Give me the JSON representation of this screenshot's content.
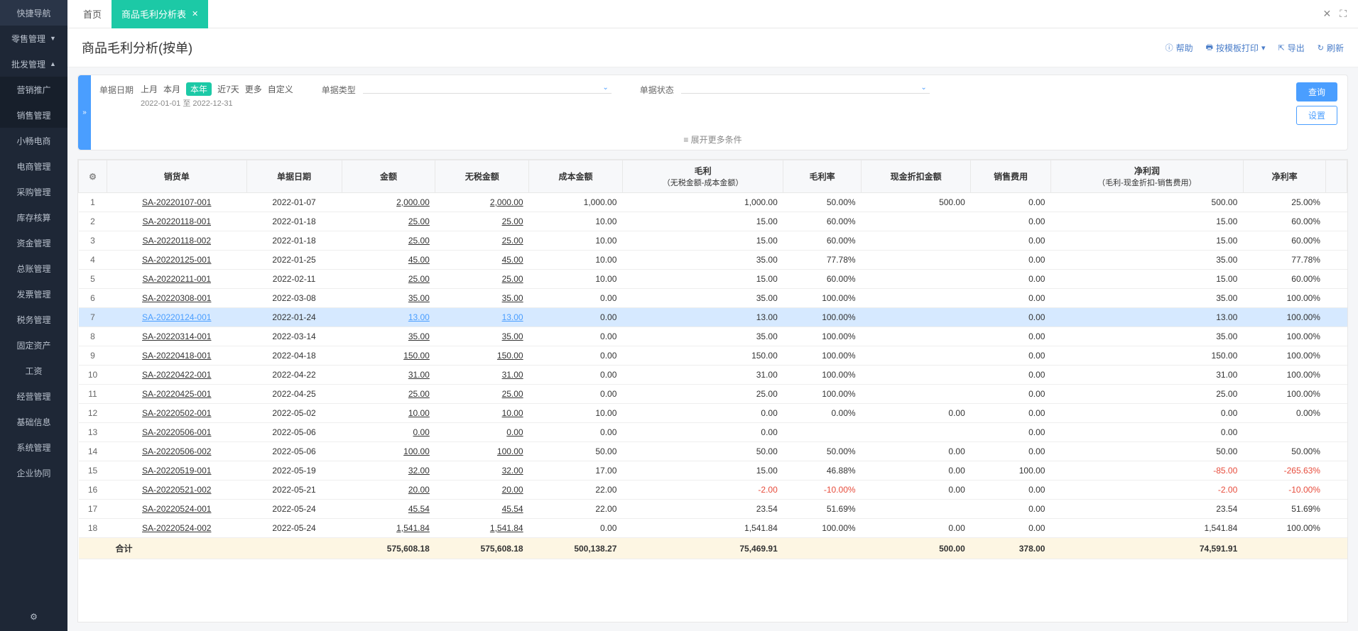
{
  "sidebar": {
    "items": [
      {
        "label": "快捷导航",
        "caret": false
      },
      {
        "label": "零售管理",
        "caret": "down"
      },
      {
        "label": "批发管理",
        "caret": "up",
        "expanded": true,
        "children": [
          {
            "label": "营销推广"
          },
          {
            "label": "销售管理"
          }
        ]
      },
      {
        "label": "小畅电商",
        "caret": false
      },
      {
        "label": "电商管理",
        "caret": false
      },
      {
        "label": "采购管理",
        "caret": false
      },
      {
        "label": "库存核算",
        "caret": false
      },
      {
        "label": "资金管理",
        "caret": false
      },
      {
        "label": "总账管理",
        "caret": false
      },
      {
        "label": "发票管理",
        "caret": false
      },
      {
        "label": "税务管理",
        "caret": false
      },
      {
        "label": "固定资产",
        "caret": false
      },
      {
        "label": "工资",
        "caret": false
      },
      {
        "label": "经营管理",
        "caret": false
      },
      {
        "label": "基础信息",
        "caret": false
      },
      {
        "label": "系统管理",
        "caret": false
      },
      {
        "label": "企业协同",
        "caret": false
      }
    ]
  },
  "tabs": [
    {
      "label": "首页",
      "active": false,
      "closable": false
    },
    {
      "label": "商品毛利分析表",
      "active": true,
      "closable": true
    }
  ],
  "page": {
    "title": "商品毛利分析(按单)",
    "actions": {
      "help": "帮助",
      "print": "按模板打印",
      "export": "导出",
      "refresh": "刷新"
    }
  },
  "filters": {
    "date_label": "单据日期",
    "date_options": [
      "上月",
      "本月",
      "本年",
      "近7天",
      "更多",
      "自定义"
    ],
    "date_active": "本年",
    "date_range": "2022-01-01 至 2022-12-31",
    "type_label": "单据类型",
    "status_label": "单据状态",
    "query_btn": "查询",
    "settings_btn": "设置",
    "expand": "展开更多条件"
  },
  "table": {
    "columns": [
      {
        "key": "doc",
        "label": "销货单"
      },
      {
        "key": "date",
        "label": "单据日期"
      },
      {
        "key": "amount",
        "label": "金额",
        "link": true
      },
      {
        "key": "amount_notax",
        "label": "无税金额",
        "link": true
      },
      {
        "key": "cost",
        "label": "成本金额"
      },
      {
        "key": "gross",
        "label": "毛利",
        "sub": "（无税金额-成本金额）"
      },
      {
        "key": "gross_rate",
        "label": "毛利率"
      },
      {
        "key": "cash_discount",
        "label": "现金折扣金额"
      },
      {
        "key": "sales_cost",
        "label": "销售费用"
      },
      {
        "key": "net",
        "label": "净利润",
        "sub": "（毛利-现金折扣-销售费用）"
      },
      {
        "key": "net_rate",
        "label": "净利率"
      }
    ],
    "rows": [
      {
        "idx": 1,
        "doc": "SA-20220107-001",
        "date": "2022-01-07",
        "amount": "2,000.00",
        "amount_notax": "2,000.00",
        "cost": "1,000.00",
        "gross": "1,000.00",
        "gross_rate": "50.00%",
        "cash_discount": "500.00",
        "sales_cost": "0.00",
        "net": "500.00",
        "net_rate": "25.00%"
      },
      {
        "idx": 2,
        "doc": "SA-20220118-001",
        "date": "2022-01-18",
        "amount": "25.00",
        "amount_notax": "25.00",
        "cost": "10.00",
        "gross": "15.00",
        "gross_rate": "60.00%",
        "cash_discount": "",
        "sales_cost": "0.00",
        "net": "15.00",
        "net_rate": "60.00%"
      },
      {
        "idx": 3,
        "doc": "SA-20220118-002",
        "date": "2022-01-18",
        "amount": "25.00",
        "amount_notax": "25.00",
        "cost": "10.00",
        "gross": "15.00",
        "gross_rate": "60.00%",
        "cash_discount": "",
        "sales_cost": "0.00",
        "net": "15.00",
        "net_rate": "60.00%"
      },
      {
        "idx": 4,
        "doc": "SA-20220125-001",
        "date": "2022-01-25",
        "amount": "45.00",
        "amount_notax": "45.00",
        "cost": "10.00",
        "gross": "35.00",
        "gross_rate": "77.78%",
        "cash_discount": "",
        "sales_cost": "0.00",
        "net": "35.00",
        "net_rate": "77.78%"
      },
      {
        "idx": 5,
        "doc": "SA-20220211-001",
        "date": "2022-02-11",
        "amount": "25.00",
        "amount_notax": "25.00",
        "cost": "10.00",
        "gross": "15.00",
        "gross_rate": "60.00%",
        "cash_discount": "",
        "sales_cost": "0.00",
        "net": "15.00",
        "net_rate": "60.00%"
      },
      {
        "idx": 6,
        "doc": "SA-20220308-001",
        "date": "2022-03-08",
        "amount": "35.00",
        "amount_notax": "35.00",
        "cost": "0.00",
        "gross": "35.00",
        "gross_rate": "100.00%",
        "cash_discount": "",
        "sales_cost": "0.00",
        "net": "35.00",
        "net_rate": "100.00%"
      },
      {
        "idx": 7,
        "doc": "SA-20220124-001",
        "date": "2022-01-24",
        "amount": "13.00",
        "amount_notax": "13.00",
        "cost": "0.00",
        "gross": "13.00",
        "gross_rate": "100.00%",
        "cash_discount": "",
        "sales_cost": "0.00",
        "net": "13.00",
        "net_rate": "100.00%",
        "hl": true
      },
      {
        "idx": 8,
        "doc": "SA-20220314-001",
        "date": "2022-03-14",
        "amount": "35.00",
        "amount_notax": "35.00",
        "cost": "0.00",
        "gross": "35.00",
        "gross_rate": "100.00%",
        "cash_discount": "",
        "sales_cost": "0.00",
        "net": "35.00",
        "net_rate": "100.00%"
      },
      {
        "idx": 9,
        "doc": "SA-20220418-001",
        "date": "2022-04-18",
        "amount": "150.00",
        "amount_notax": "150.00",
        "cost": "0.00",
        "gross": "150.00",
        "gross_rate": "100.00%",
        "cash_discount": "",
        "sales_cost": "0.00",
        "net": "150.00",
        "net_rate": "100.00%"
      },
      {
        "idx": 10,
        "doc": "SA-20220422-001",
        "date": "2022-04-22",
        "amount": "31.00",
        "amount_notax": "31.00",
        "cost": "0.00",
        "gross": "31.00",
        "gross_rate": "100.00%",
        "cash_discount": "",
        "sales_cost": "0.00",
        "net": "31.00",
        "net_rate": "100.00%"
      },
      {
        "idx": 11,
        "doc": "SA-20220425-001",
        "date": "2022-04-25",
        "amount": "25.00",
        "amount_notax": "25.00",
        "cost": "0.00",
        "gross": "25.00",
        "gross_rate": "100.00%",
        "cash_discount": "",
        "sales_cost": "0.00",
        "net": "25.00",
        "net_rate": "100.00%"
      },
      {
        "idx": 12,
        "doc": "SA-20220502-001",
        "date": "2022-05-02",
        "amount": "10.00",
        "amount_notax": "10.00",
        "cost": "10.00",
        "gross": "0.00",
        "gross_rate": "0.00%",
        "cash_discount": "0.00",
        "sales_cost": "0.00",
        "net": "0.00",
        "net_rate": "0.00%"
      },
      {
        "idx": 13,
        "doc": "SA-20220506-001",
        "date": "2022-05-06",
        "amount": "0.00",
        "amount_notax": "0.00",
        "cost": "0.00",
        "gross": "0.00",
        "gross_rate": "",
        "cash_discount": "",
        "sales_cost": "0.00",
        "net": "0.00",
        "net_rate": ""
      },
      {
        "idx": 14,
        "doc": "SA-20220506-002",
        "date": "2022-05-06",
        "amount": "100.00",
        "amount_notax": "100.00",
        "cost": "50.00",
        "gross": "50.00",
        "gross_rate": "50.00%",
        "cash_discount": "0.00",
        "sales_cost": "0.00",
        "net": "50.00",
        "net_rate": "50.00%"
      },
      {
        "idx": 15,
        "doc": "SA-20220519-001",
        "date": "2022-05-19",
        "amount": "32.00",
        "amount_notax": "32.00",
        "cost": "17.00",
        "gross": "15.00",
        "gross_rate": "46.88%",
        "cash_discount": "0.00",
        "sales_cost": "100.00",
        "net": "-85.00",
        "net_rate": "-265.63%",
        "neg": true
      },
      {
        "idx": 16,
        "doc": "SA-20220521-002",
        "date": "2022-05-21",
        "amount": "20.00",
        "amount_notax": "20.00",
        "cost": "22.00",
        "gross": "-2.00",
        "gross_rate": "-10.00%",
        "cash_discount": "0.00",
        "sales_cost": "0.00",
        "net": "-2.00",
        "net_rate": "-10.00%",
        "neg_gross": true,
        "neg": true
      },
      {
        "idx": 17,
        "doc": "SA-20220524-001",
        "date": "2022-05-24",
        "amount": "45.54",
        "amount_notax": "45.54",
        "cost": "22.00",
        "gross": "23.54",
        "gross_rate": "51.69%",
        "cash_discount": "",
        "sales_cost": "0.00",
        "net": "23.54",
        "net_rate": "51.69%"
      },
      {
        "idx": 18,
        "doc": "SA-20220524-002",
        "date": "2022-05-24",
        "amount": "1,541.84",
        "amount_notax": "1,541.84",
        "cost": "0.00",
        "gross": "1,541.84",
        "gross_rate": "100.00%",
        "cash_discount": "0.00",
        "sales_cost": "0.00",
        "net": "1,541.84",
        "net_rate": "100.00%"
      }
    ],
    "total": {
      "label": "合计",
      "amount": "575,608.18",
      "amount_notax": "575,608.18",
      "cost": "500,138.27",
      "gross": "75,469.91",
      "gross_rate": "",
      "cash_discount": "500.00",
      "sales_cost": "378.00",
      "net": "74,591.91",
      "net_rate": ""
    }
  }
}
